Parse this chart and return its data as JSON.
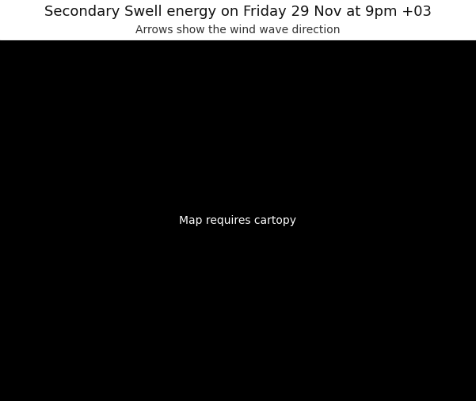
{
  "title": "Secondary Swell energy on Friday 29 Nov at 9pm +03",
  "subtitle": "Arrows show the wind wave direction",
  "title_fontsize": 13,
  "subtitle_fontsize": 10,
  "title_color": "#111111",
  "subtitle_color": "#333333",
  "background_color": "#ffffff",
  "header_bg": "#f0f0f0",
  "fig_width": 6.01,
  "fig_height": 5.07,
  "dpi": 100,
  "lon_min": 24.0,
  "lon_max": 65.0,
  "lat_min": 12.0,
  "lat_max": 48.0,
  "border_color": "#000000",
  "border_lw": 0.5,
  "land_color": "#aaaaaa",
  "ocean_color": "#000000",
  "coastline_color": "#000000",
  "coastline_lw": 0.5,
  "country_border_color": "#000000",
  "country_border_lw": 0.4
}
